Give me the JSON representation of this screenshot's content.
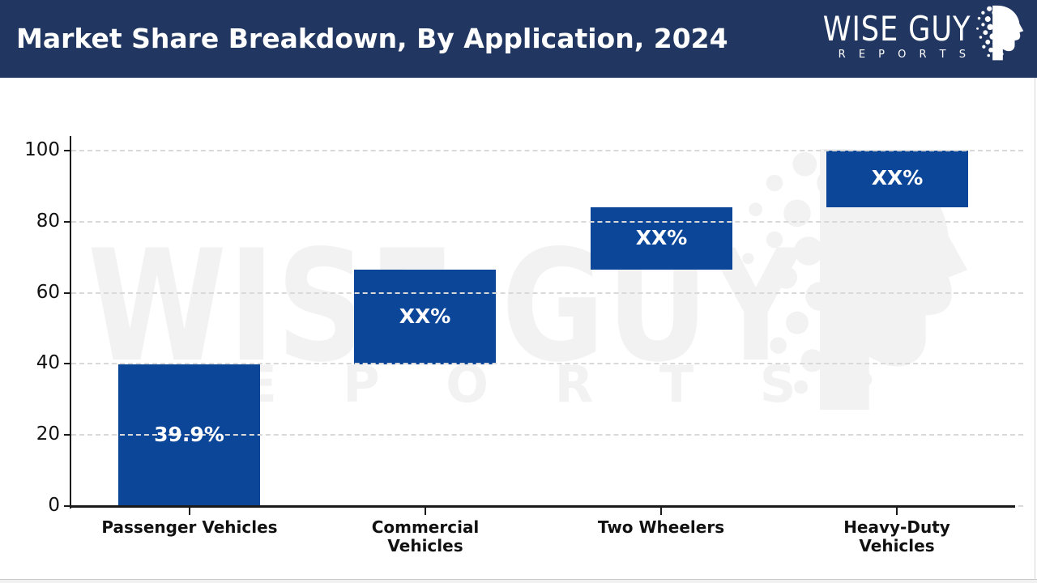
{
  "header": {
    "title": "Market Share Breakdown, By Application, 2024",
    "logo_line1": "WISE GUY",
    "logo_line2": "R E P O R T S"
  },
  "watermark": {
    "line1": "WISE GUY",
    "line2": "R E P O R T S"
  },
  "colors": {
    "header_bg": "#213761",
    "bar": "#0B4699",
    "grid": "#d9d9d9",
    "axis": "#1a1a1a",
    "bar_label_text": "#ffffff",
    "watermark": "#f2f2f2"
  },
  "chart_data": {
    "type": "bar",
    "subtype": "waterfall",
    "title": "Market Share Breakdown, By Application, 2024",
    "categories": [
      "Passenger Vehicles",
      "Commercial Vehicles",
      "Two Wheelers",
      "Heavy-Duty Vehicles"
    ],
    "category_lines": [
      [
        "Passenger Vehicles"
      ],
      [
        "Commercial",
        "Vehicles"
      ],
      [
        "Two Wheelers"
      ],
      [
        "Heavy-Duty",
        "Vehicles"
      ]
    ],
    "segments": [
      {
        "category": "Passenger Vehicles",
        "start": 0,
        "end": 39.9,
        "label": "39.9%"
      },
      {
        "category": "Commercial Vehicles",
        "start": 39.9,
        "end": 66.6,
        "label": "XX%"
      },
      {
        "category": "Two Wheelers",
        "start": 66.6,
        "end": 84.1,
        "label": "XX%"
      },
      {
        "category": "Heavy-Duty Vehicles",
        "start": 84.1,
        "end": 100,
        "label": "XX%"
      }
    ],
    "xlabel": "",
    "ylabel": "",
    "ylim": [
      0,
      105
    ],
    "yticks": [
      0,
      20,
      40,
      60,
      80,
      100
    ],
    "grid": "horizontal-dashed",
    "legend": "none"
  }
}
